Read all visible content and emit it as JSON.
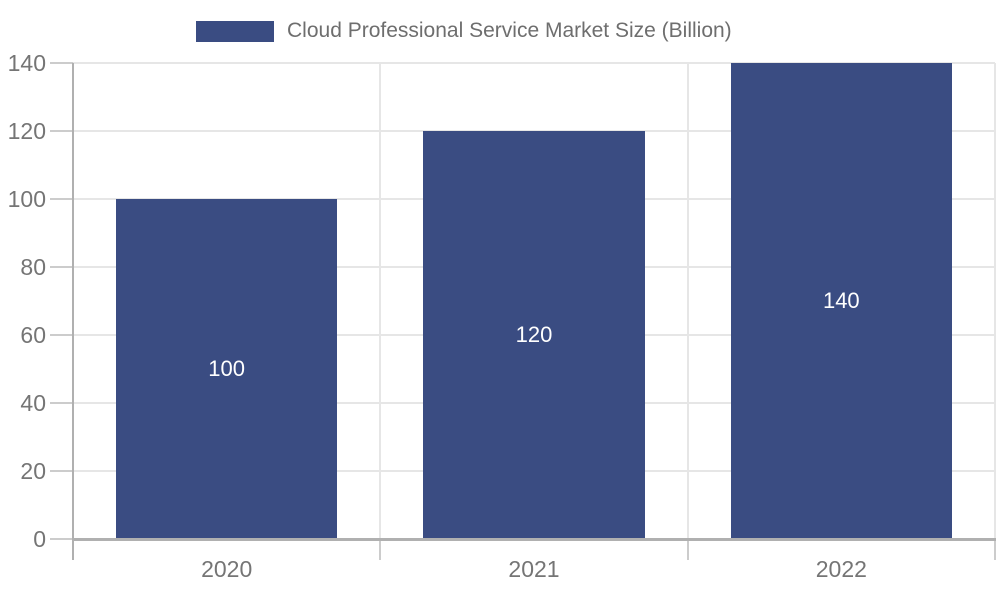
{
  "chart_data": {
    "type": "bar",
    "title": "Cloud Professional Service Market Size (Billion)",
    "categories": [
      "2020",
      "2021",
      "2022"
    ],
    "values": [
      100,
      120,
      140
    ],
    "series": [
      {
        "name": "Cloud Professional Service Market Size (Billion)",
        "values": [
          100,
          120,
          140
        ]
      }
    ],
    "xlabel": "",
    "ylabel": "",
    "ylim": [
      0,
      140
    ],
    "ytick_step": 20,
    "ytick_labels": [
      "0",
      "20",
      "40",
      "60",
      "80",
      "100",
      "120",
      "140"
    ],
    "value_labels": [
      "100",
      "120",
      "140"
    ],
    "grid": true,
    "legend_position": "top",
    "colors": {
      "bar": "#3a4c82",
      "value_label": "#ffffff",
      "axis_label": "#757575",
      "title": "#6e6e6e",
      "gridline": "#e6e6e6",
      "axis_line": "#b0b0b0",
      "tick": "#cccccc",
      "background": "#ffffff"
    }
  }
}
